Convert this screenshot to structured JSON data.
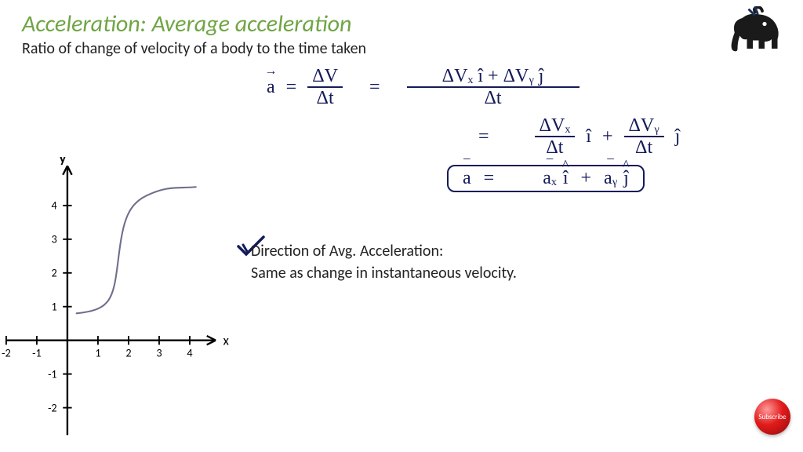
{
  "title": "Acceleration: Average acceleration",
  "title_color": "#6fa544",
  "subtitle": "Ratio of change of velocity of a body to the time taken",
  "direction": {
    "heading": "Direction of Avg. Acceleration:",
    "body": "Same as change in instantaneous velocity."
  },
  "subscribe_label": "Subscribe",
  "formula": {
    "color": "#141b5a",
    "line1": {
      "lhs": "a",
      "num1": "ΔV",
      "den1": "Δt",
      "num2": "ΔVₓ î  +  ΔVᵧ ĵ",
      "den2": "Δt"
    },
    "line2": {
      "t1n": "ΔVₓ",
      "t1d": "Δt",
      "u1": "î",
      "t2n": "ΔVᵧ",
      "t2d": "Δt",
      "u2": "ĵ"
    },
    "boxed": {
      "lhs": "a",
      "ax": "aₓ",
      "u1": "î",
      "ay": "aᵧ",
      "u2": "ĵ"
    }
  },
  "graph": {
    "x_label": "x",
    "y_label": "y",
    "x_ticks": [
      -2,
      -1,
      1,
      2,
      3,
      4
    ],
    "y_ticks": [
      -2,
      -1,
      1,
      2,
      3,
      4
    ],
    "curve_color": "#6e6e8f",
    "axis_color": "#000000",
    "xlim": [
      -2,
      4.8
    ],
    "ylim": [
      -2.5,
      5
    ]
  }
}
